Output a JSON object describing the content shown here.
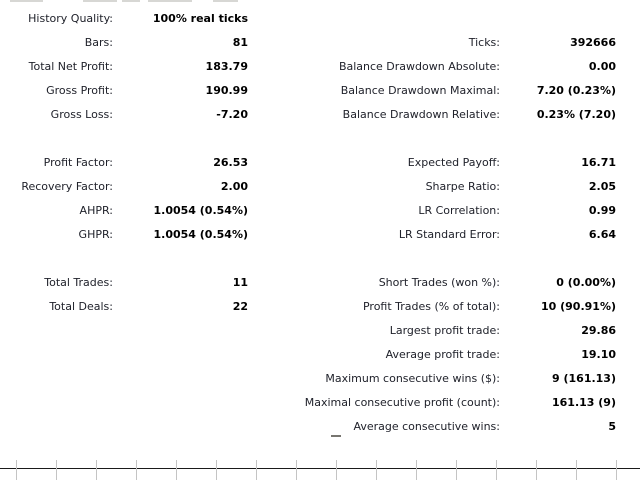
{
  "report": {
    "rows": [
      {
        "left_label": "History Quality:",
        "left_value": "100% real ticks",
        "right_label": "",
        "right_value": ""
      },
      {
        "left_label": "Bars:",
        "left_value": "81",
        "right_label": "Ticks:",
        "right_value": "392666"
      },
      {
        "left_label": "Total Net Profit:",
        "left_value": "183.79",
        "right_label": "Balance Drawdown Absolute:",
        "right_value": "0.00"
      },
      {
        "left_label": "Gross Profit:",
        "left_value": "190.99",
        "right_label": "Balance Drawdown Maximal:",
        "right_value": "7.20 (0.23%)"
      },
      {
        "left_label": "Gross Loss:",
        "left_value": "-7.20",
        "right_label": "Balance Drawdown Relative:",
        "right_value": "0.23% (7.20)"
      },
      {
        "spacer": true
      },
      {
        "left_label": "Profit Factor:",
        "left_value": "26.53",
        "right_label": "Expected Payoff:",
        "right_value": "16.71"
      },
      {
        "left_label": "Recovery Factor:",
        "left_value": "2.00",
        "right_label": "Sharpe Ratio:",
        "right_value": "2.05"
      },
      {
        "left_label": "AHPR:",
        "left_value": "1.0054 (0.54%)",
        "right_label": "LR Correlation:",
        "right_value": "0.99"
      },
      {
        "left_label": "GHPR:",
        "left_value": "1.0054 (0.54%)",
        "right_label": "LR Standard Error:",
        "right_value": "6.64"
      },
      {
        "spacer": true
      },
      {
        "left_label": "Total Trades:",
        "left_value": "11",
        "right_label": "Short Trades (won %):",
        "right_value": "0 (0.00%)"
      },
      {
        "left_label": "Total Deals:",
        "left_value": "22",
        "right_label": "Profit Trades (% of total):",
        "right_value": "10 (90.91%)"
      },
      {
        "left_label": "",
        "left_value": "",
        "right_label": "Largest profit trade:",
        "right_value": "29.86"
      },
      {
        "left_label": "",
        "left_value": "",
        "right_label": "Average profit trade:",
        "right_value": "19.10"
      },
      {
        "left_label": "",
        "left_value": "",
        "right_label": "Maximum consecutive wins ($):",
        "right_value": "9 (161.13)"
      },
      {
        "left_label": "",
        "left_value": "",
        "right_label": "Maximal consecutive profit (count):",
        "right_value": "161.13 (9)"
      },
      {
        "left_label": "",
        "left_value": "",
        "right_label": "Average consecutive wins:",
        "right_value": "5"
      }
    ]
  },
  "chart_axis": {
    "first_tick_x": 16,
    "tick_spacing": 40,
    "tick_count": 16
  },
  "colors": {
    "background": "#ffffff",
    "label_text": "#20222b",
    "value_text": "#000000",
    "axis_line": "#1a1a1a",
    "tick": "#c4c4c4"
  }
}
